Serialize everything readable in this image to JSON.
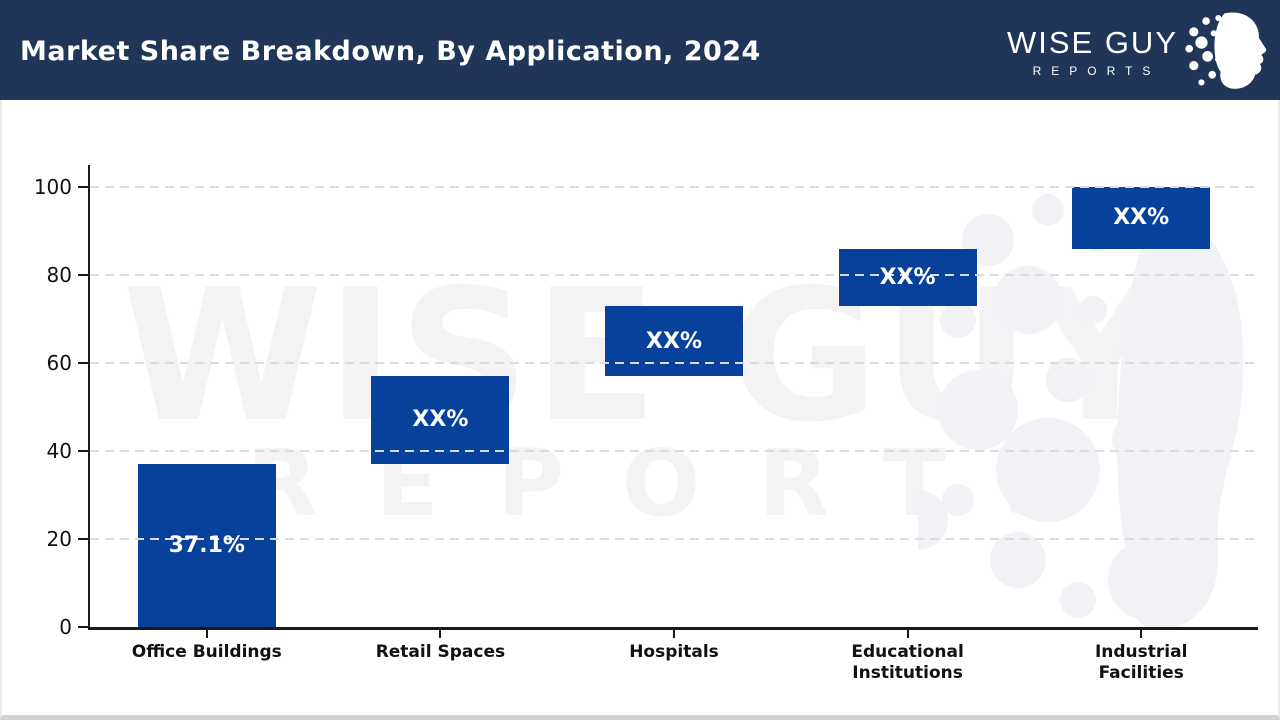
{
  "header": {
    "title": "Market Share Breakdown, By Application, 2024",
    "logo": {
      "line1": "WISE GUY",
      "line2": "REPORTS"
    },
    "bg_color": "#1f3659",
    "text_color": "#ffffff"
  },
  "watermark": {
    "line1": "WISE GUY",
    "line2": "REPORTS"
  },
  "chart_data": {
    "type": "bar",
    "subtype": "waterfall-breakdown",
    "title": "Market Share Breakdown, By Application, 2024",
    "categories": [
      "Office Buildings",
      "Retail Spaces",
      "Hospitals",
      "Educational\nInstitutions",
      "Industrial\nFacilities"
    ],
    "segments": [
      {
        "category": "Office Buildings",
        "from": 0,
        "to": 37.1,
        "label": "37.1%"
      },
      {
        "category": "Retail Spaces",
        "from": 37.1,
        "to": 57,
        "label": "XX%"
      },
      {
        "category": "Hospitals",
        "from": 57,
        "to": 73,
        "label": "XX%"
      },
      {
        "category": "Educational Institutions",
        "from": 73,
        "to": 86,
        "label": "XX%"
      },
      {
        "category": "Industrial Facilities",
        "from": 86,
        "to": 100,
        "label": "XX%"
      }
    ],
    "xlabel": "",
    "ylabel": "",
    "yticks": [
      0,
      20,
      40,
      60,
      80,
      100
    ],
    "ylim": [
      0,
      105
    ],
    "grid": "horizontal-dashed",
    "legend": "none",
    "colors": {
      "bar": "#07419c",
      "bar_label": "#ffffff",
      "grid": "#dcdcdc",
      "axis": "#1a1a1a"
    }
  }
}
